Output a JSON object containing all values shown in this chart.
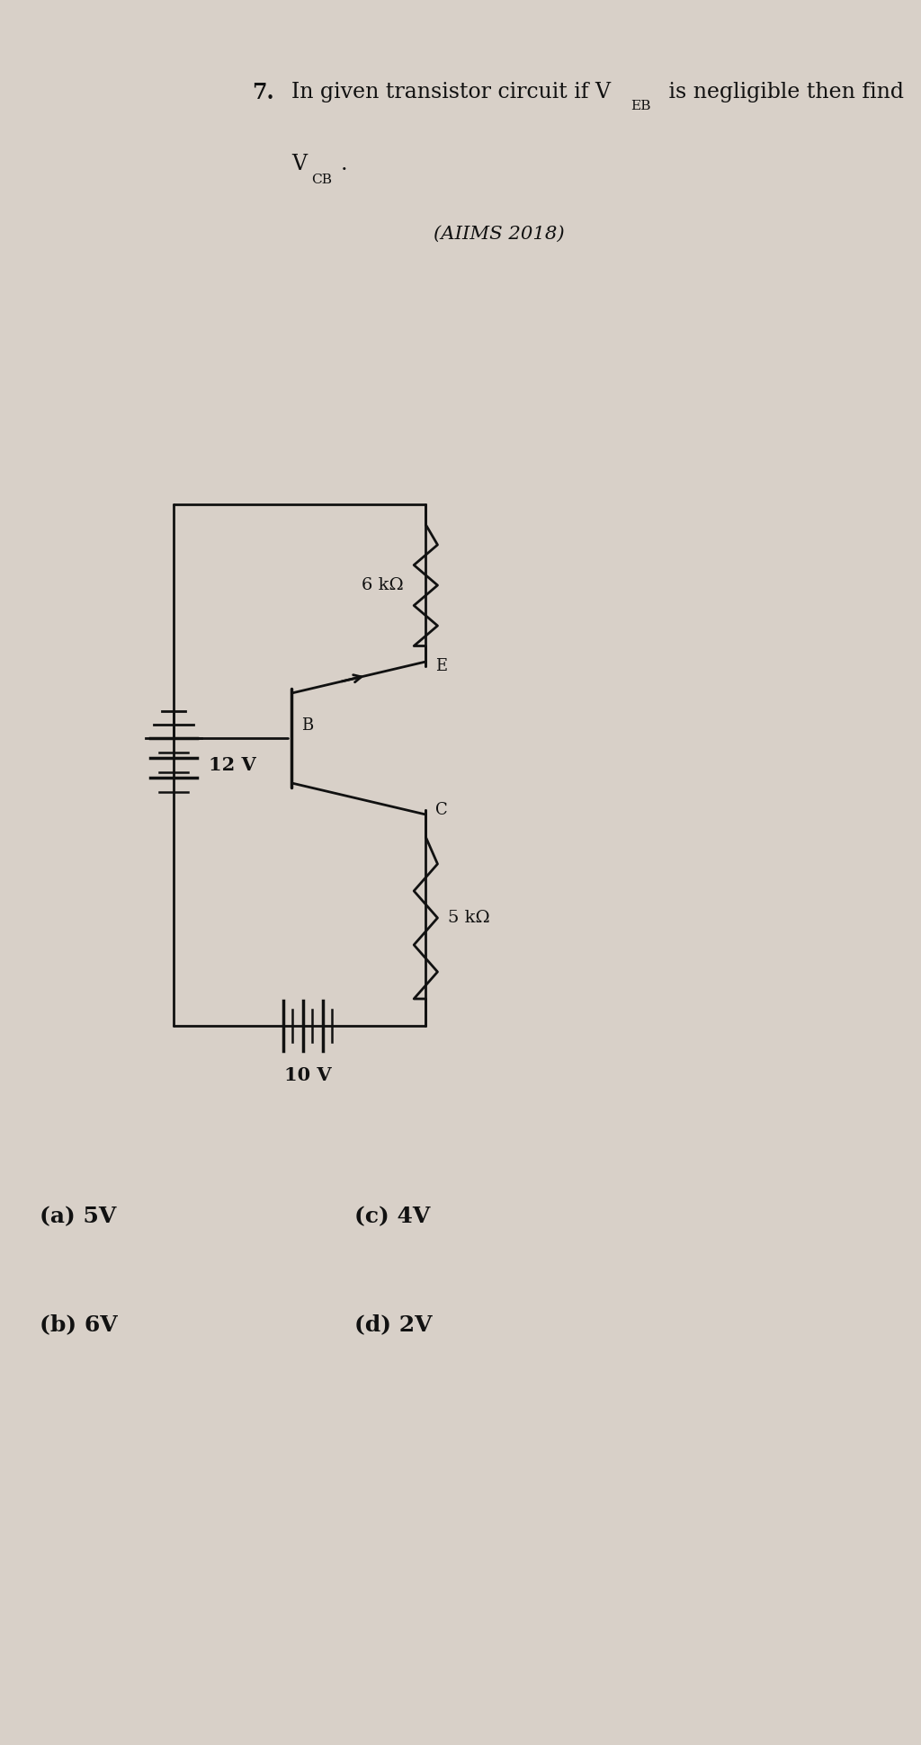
{
  "title_num": "7.",
  "question_line1": "In given transistor circuit if V",
  "question_sub_EB": "EB",
  "question_line1_end": " is negligible then find",
  "question_line2": "V",
  "question_sub_CB": "CB",
  "question_line2_end": ".",
  "source": "(AIIMS 2018)",
  "options": [
    "(a) 5V",
    "(b) 6V",
    "(c) 4V",
    "(d) 2V"
  ],
  "bg_color": "#d8d0c8",
  "paper_color": "#f0ece4",
  "text_color": "#111111",
  "battery1_voltage": "12 V",
  "battery2_voltage": "10 V",
  "resistor1": "6 kΩ",
  "resistor2": "5 kΩ",
  "node_E": "E",
  "node_B": "B",
  "node_C": "C"
}
